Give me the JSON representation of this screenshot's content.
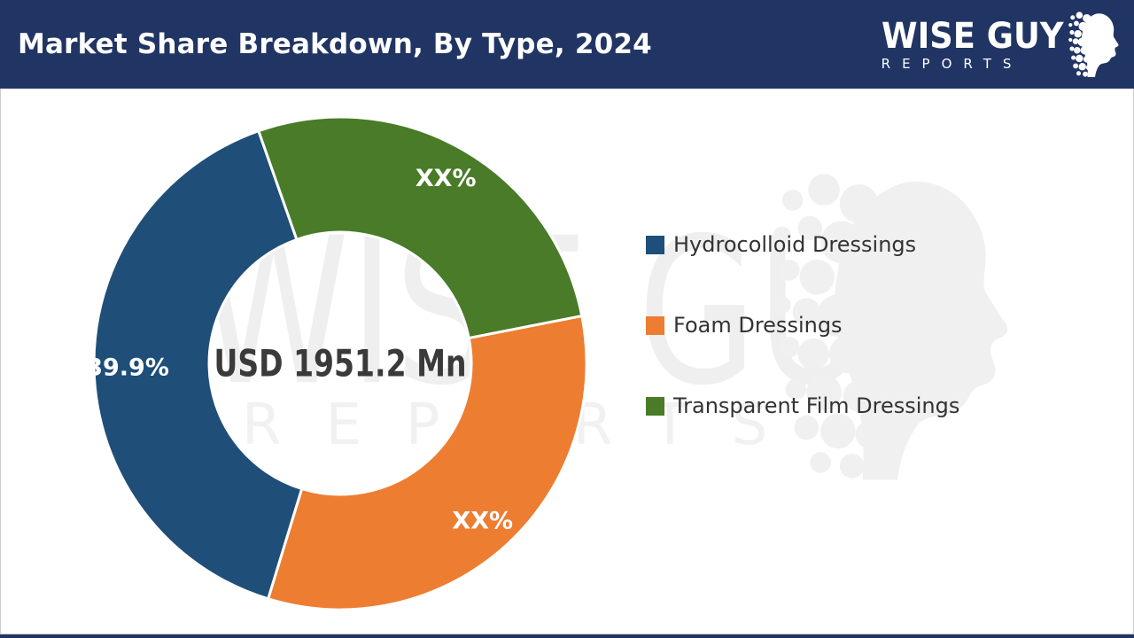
{
  "header": {
    "title": "Market Share Breakdown, By Type, 2024",
    "logo": {
      "line1": "WISE GUY",
      "line2": "REPORTS"
    }
  },
  "watermark": {
    "line1": "WISE GUY",
    "line2": "REPORTS"
  },
  "theme": {
    "header_bg": "#213564",
    "footer_bg": "#213564",
    "border_gray": "#cccccc",
    "center_text_color": "#3a3a3a",
    "legend_text_color": "#333333",
    "watermark_color": "#efefef"
  },
  "chart_data": {
    "type": "donut",
    "title": "Market Share Breakdown, By Type, 2024",
    "center_label": "USD 1951.2 Mn",
    "start_angle_deg": 197,
    "direction": "clockwise",
    "segments": [
      {
        "name": "Hydrocolloid Dressings",
        "label": "39.9%",
        "pct": 39.9,
        "color": "#1F4E79",
        "label_color": "#ffffff"
      },
      {
        "name": "Transparent Film Dressings",
        "label": "XX%",
        "pct": 27.3,
        "color": "#497B28",
        "label_color": "#ffffff"
      },
      {
        "name": "Foam Dressings",
        "label": "XX%",
        "pct": 32.8,
        "color": "#ED7D31",
        "label_color": "#ffffff"
      }
    ],
    "legend_order": [
      "Hydrocolloid Dressings",
      "Foam Dressings",
      "Transparent Film Dressings"
    ],
    "legend_position": "right",
    "notes": "pct values for XX% segments are estimated from arc angles; only 39.9% is printed on the chart"
  }
}
